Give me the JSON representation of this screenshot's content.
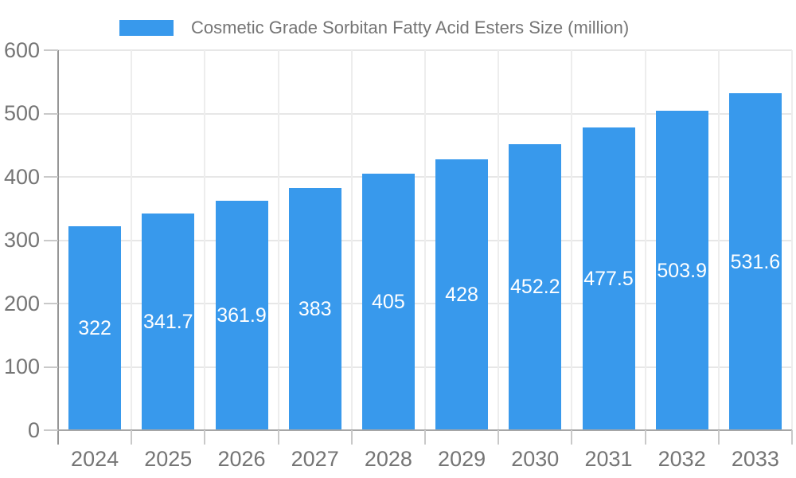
{
  "chart_data": {
    "type": "bar",
    "title": "Cosmetic Grade Sorbitan Fatty Acid Esters Size (million)",
    "categories": [
      "2024",
      "2025",
      "2026",
      "2027",
      "2028",
      "2029",
      "2030",
      "2031",
      "2032",
      "2033"
    ],
    "values": [
      322,
      341.7,
      361.9,
      383,
      405,
      428,
      452.2,
      477.5,
      503.9,
      531.6
    ],
    "xlabel": "",
    "ylabel": "",
    "ylim": [
      0,
      600
    ],
    "y_ticks": [
      0,
      100,
      200,
      300,
      400,
      500,
      600
    ],
    "grid": true,
    "legend_position": "top-center",
    "value_label_position": "center-of-bar",
    "colors": {
      "bar": "#3899EC",
      "bar_label": "#FFFFFF",
      "axis_text": "#757575",
      "y_axis_line": "#969696",
      "x_axis_line": "#A6A6A6",
      "gridline": "#E7E7E7",
      "gridline_vertical": "#EDEDED",
      "tick": "#C9C9C9",
      "background": "#FFFFFF"
    }
  }
}
